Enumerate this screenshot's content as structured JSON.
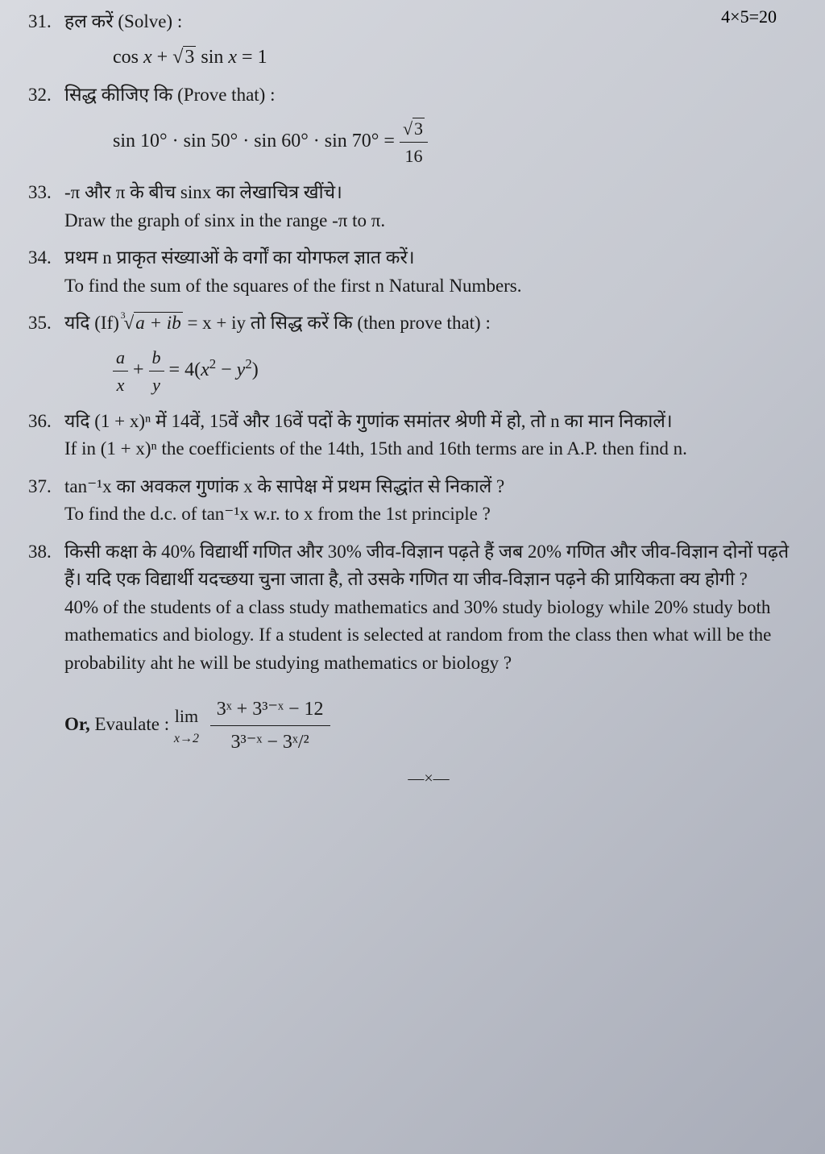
{
  "topright": "4×5=20",
  "questions": {
    "q31": {
      "num": "31.",
      "hindi": "हल करें (Solve) :",
      "formula_parts": {
        "p1": "cos ",
        "p2": "x",
        "p3": " + ",
        "p4": "3",
        "p5": " sin ",
        "p6": "x",
        "p7": " = 1"
      }
    },
    "q32": {
      "num": "32.",
      "hindi": "सिद्ध कीजिए कि (Prove that) :",
      "formula_parts": {
        "p1": "sin 10° · sin 50° · sin 60° · sin 70° = ",
        "p2": "3",
        "p3": "16"
      }
    },
    "q33": {
      "num": "33.",
      "hindi": "-π और π के बीच sinx का लेखाचित्र खींचे।",
      "english": "Draw the graph of sinx in the range -π to π."
    },
    "q34": {
      "num": "34.",
      "hindi": "प्रथम n प्राकृत संख्याओं के वर्गों का योगफल ज्ञात करें।",
      "english": "To find the sum of the squares of the first n Natural Numbers."
    },
    "q35": {
      "num": "35.",
      "hindi_p1": "यदि (If) ",
      "root_index": "3",
      "root_content": "a + ib",
      "hindi_p2": " = x + iy तो सिद्ध करें कि (then prove that) :",
      "formula": {
        "a": "a",
        "x": "x",
        "plus": " + ",
        "b": "b",
        "y": "y",
        "eq": " = 4(",
        "x2": "x",
        "sup2a": "2",
        "minus": " − ",
        "y2": "y",
        "sup2b": "2",
        "close": ")"
      }
    },
    "q36": {
      "num": "36.",
      "hindi": "यदि (1 + x)ⁿ में 14वें, 15वें और 16वें पदों के गुणांक समांतर श्रेणी में हो, तो n का मान निकालें।",
      "english": "If in (1 + x)ⁿ the coefficients of the 14th, 15th and 16th terms are in A.P. then find n."
    },
    "q37": {
      "num": "37.",
      "hindi": "tan⁻¹x का अवकल गुणांक x के सापेक्ष में प्रथम सिद्धांत से निकालें ?",
      "english": "To find the d.c. of tan⁻¹x w.r. to x from the 1st principle ?"
    },
    "q38": {
      "num": "38.",
      "hindi": "किसी कक्षा के 40% विद्यार्थी गणित और 30% जीव-विज्ञान पढ़ते हैं जब 20% गणित और जीव-विज्ञान दोनों पढ़ते हैं। यदि एक विद्यार्थी यदच्छया चुना जाता है, तो उसके गणित या जीव-विज्ञान पढ़ने की प्रायिकता क्य होगी ?",
      "english": "40% of the students of a class study mathematics and 30% study biology while 20% study both mathematics and biology. If a student is selected at random from the class then what will be the probability aht he will be studying mathematics or biology ?"
    },
    "or": {
      "label": "Or, ",
      "evaluate": "Evaulate : ",
      "lim": "lim",
      "approach": "x→2",
      "num": "3ˣ + 3³⁻ˣ − 12",
      "den": "3³⁻ˣ − 3ˣ/²"
    },
    "endmark": "—×—"
  }
}
